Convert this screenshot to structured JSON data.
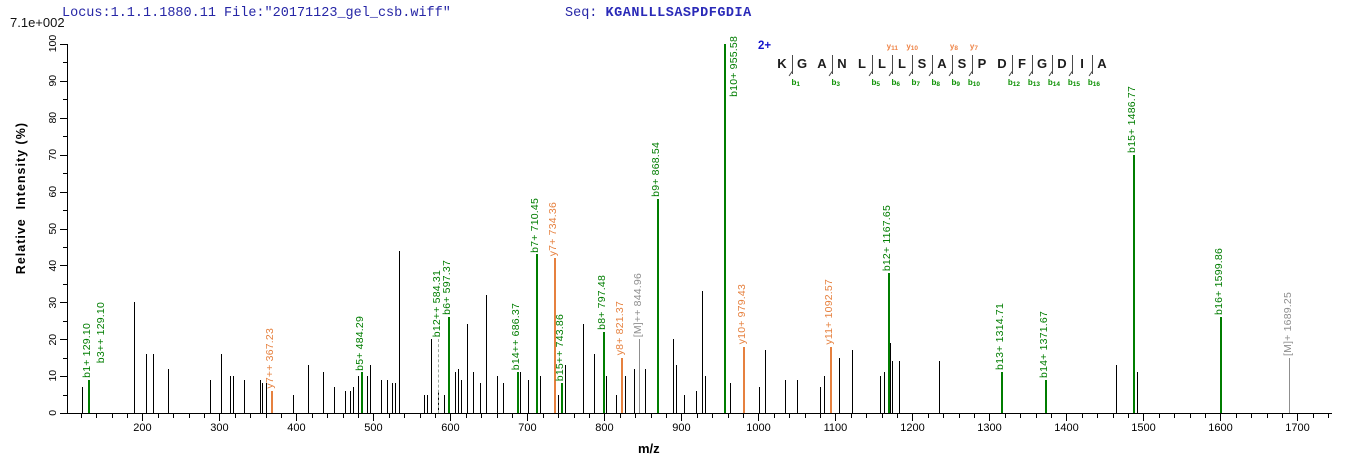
{
  "header": {
    "locus_file": "Locus:1.1.1.1880.11 File:\"20171123_gel_csb.wiff\"",
    "seq_label": "Seq: ",
    "sequence": "KGANLLLSASPDFGDIA"
  },
  "colors": {
    "b_ion": "#007d00",
    "y_ion": "#e6813f",
    "precursor_ion": "#8f8f8f",
    "unmatched_peak": "#000000",
    "header_text": "#2626a6",
    "charge_text": "#1414cc"
  },
  "chart_data": {
    "type": "bar",
    "subtype": "mass-spectrum",
    "title": "",
    "xlabel": "m/z",
    "ylabel": "Relative  Intensity (%)",
    "intensity_max_label": "7.1e+002",
    "xlim": [
      102,
      1745
    ],
    "ylim": [
      0,
      100
    ],
    "x_major_tick_step": 100,
    "x_minor_tick_step": 20,
    "x_tick_labels": [
      200,
      300,
      400,
      500,
      600,
      700,
      800,
      900,
      1000,
      1100,
      1200,
      1300,
      1400,
      1500,
      1600,
      1700
    ],
    "y_major_tick_step": 10,
    "y_minor_tick_step": 5,
    "y_tick_labels": [
      0,
      10,
      20,
      30,
      40,
      50,
      60,
      70,
      80,
      90,
      100
    ],
    "grid": false,
    "legend": false,
    "annotated_peaks": [
      {
        "label": "b1+ 129.10",
        "mz": 129.1,
        "pct": 9,
        "ion": "b"
      },
      {
        "label": "b3++ 129.10",
        "mz": 129.1,
        "pct": 9,
        "ion": "b",
        "no_line": true,
        "label_pct": 13,
        "label_dx": 7
      },
      {
        "label": "y7++ 367.23",
        "mz": 367.23,
        "pct": 6,
        "ion": "y"
      },
      {
        "label": "b5+ 484.29",
        "mz": 484.29,
        "pct": 11,
        "ion": "b"
      },
      {
        "label": "b12++ 584.31",
        "mz": 584.31,
        "pct": 6,
        "ion": "b",
        "dashed_to": 20,
        "label_pct": 20
      },
      {
        "label": "b6+ 597.37",
        "mz": 597.37,
        "pct": 26,
        "ion": "b"
      },
      {
        "label": "b14++ 686.37",
        "mz": 686.37,
        "pct": 11,
        "ion": "b"
      },
      {
        "label": "b7+ 710.45",
        "mz": 710.45,
        "pct": 43,
        "ion": "b"
      },
      {
        "label": "y7+ 734.36",
        "mz": 734.36,
        "pct": 42,
        "ion": "y"
      },
      {
        "label": "b15++ 743.86",
        "mz": 743.86,
        "pct": 8,
        "ion": "b"
      },
      {
        "label": "b8+ 797.48",
        "mz": 797.48,
        "pct": 22,
        "ion": "b"
      },
      {
        "label": "y8+ 821.37",
        "mz": 821.37,
        "pct": 15,
        "ion": "y"
      },
      {
        "label": "[M]++ 844.96",
        "mz": 844.96,
        "pct": 20,
        "ion": "M"
      },
      {
        "label": "b9+ 868.54",
        "mz": 868.54,
        "pct": 58,
        "ion": "b"
      },
      {
        "label": "b10+ 955.58",
        "mz": 955.58,
        "pct": 100,
        "ion": "b",
        "label_pct": 85,
        "label_dx": 4
      },
      {
        "label": "y10+ 979.43",
        "mz": 979.43,
        "pct": 18,
        "ion": "y"
      },
      {
        "label": "y11+ 1092.57",
        "mz": 1092.57,
        "pct": 18,
        "ion": "y"
      },
      {
        "label": "b12+ 1167.65",
        "mz": 1167.65,
        "pct": 38,
        "ion": "b"
      },
      {
        "label": "b13+ 1314.71",
        "mz": 1314.71,
        "pct": 11,
        "ion": "b"
      },
      {
        "label": "b14+ 1371.67",
        "mz": 1371.67,
        "pct": 9,
        "ion": "b"
      },
      {
        "label": "b15+ 1486.77",
        "mz": 1486.77,
        "pct": 70,
        "ion": "b"
      },
      {
        "label": "b16+ 1599.86",
        "mz": 1599.86,
        "pct": 26,
        "ion": "b"
      },
      {
        "label": "[M]+ 1689.25",
        "mz": 1689.25,
        "pct": 15,
        "ion": "M"
      }
    ],
    "unlabeled_peaks": [
      [
        122,
        7
      ],
      [
        189,
        30
      ],
      [
        204,
        16
      ],
      [
        214,
        16
      ],
      [
        233,
        12
      ],
      [
        288,
        9
      ],
      [
        302,
        16
      ],
      [
        314,
        10
      ],
      [
        318,
        10
      ],
      [
        332,
        9
      ],
      [
        352,
        9
      ],
      [
        355,
        8
      ],
      [
        361,
        8
      ],
      [
        396,
        5
      ],
      [
        415,
        13
      ],
      [
        435,
        11
      ],
      [
        449,
        7
      ],
      [
        463,
        6
      ],
      [
        469,
        6
      ],
      [
        474,
        7
      ],
      [
        480,
        10
      ],
      [
        491,
        10
      ],
      [
        495,
        13
      ],
      [
        510,
        9
      ],
      [
        517,
        9
      ],
      [
        524,
        8
      ],
      [
        528,
        8
      ],
      [
        533,
        44
      ],
      [
        565,
        5
      ],
      [
        570,
        5
      ],
      [
        575,
        20
      ],
      [
        584,
        6
      ],
      [
        591,
        5
      ],
      [
        606,
        11
      ],
      [
        610,
        12
      ],
      [
        613,
        9
      ],
      [
        622,
        24
      ],
      [
        629,
        11
      ],
      [
        638,
        8
      ],
      [
        646,
        32
      ],
      [
        660,
        10
      ],
      [
        668,
        8
      ],
      [
        690,
        11
      ],
      [
        701,
        9
      ],
      [
        716,
        10
      ],
      [
        740,
        5
      ],
      [
        749,
        13
      ],
      [
        772,
        24
      ],
      [
        786,
        16
      ],
      [
        802,
        10
      ],
      [
        815,
        5
      ],
      [
        823,
        15
      ],
      [
        827,
        10
      ],
      [
        838,
        12
      ],
      [
        853,
        12
      ],
      [
        889,
        20
      ],
      [
        893,
        13
      ],
      [
        903,
        5
      ],
      [
        919,
        6
      ],
      [
        927,
        33
      ],
      [
        931,
        10
      ],
      [
        963,
        8
      ],
      [
        1001,
        7
      ],
      [
        1008,
        17
      ],
      [
        1034,
        9
      ],
      [
        1050,
        9
      ],
      [
        1080,
        7
      ],
      [
        1085,
        10
      ],
      [
        1104,
        15
      ],
      [
        1122,
        17
      ],
      [
        1158,
        10
      ],
      [
        1163,
        11
      ],
      [
        1171,
        19
      ],
      [
        1174,
        14
      ],
      [
        1182,
        14
      ],
      [
        1235,
        14
      ],
      [
        1464,
        13
      ],
      [
        1491,
        11
      ]
    ]
  },
  "fragment_map": {
    "charge_label": "2+",
    "residues": [
      "K",
      "G",
      "A",
      "N",
      "L",
      "L",
      "L",
      "S",
      "A",
      "S",
      "P",
      "D",
      "F",
      "G",
      "D",
      "I",
      "A"
    ],
    "cuts": [
      {
        "after": 1,
        "b": "b1"
      },
      {
        "after": 3,
        "b": "b3"
      },
      {
        "after": 5,
        "b": "b5"
      },
      {
        "after": 6,
        "b": "b6",
        "y": "y11"
      },
      {
        "after": 7,
        "b": "b7",
        "y": "y10"
      },
      {
        "after": 8,
        "b": "b8"
      },
      {
        "after": 9,
        "b": "b9",
        "y": "y8"
      },
      {
        "after": 10,
        "b": "b10",
        "y": "y7"
      },
      {
        "after": 12,
        "b": "b12"
      },
      {
        "after": 13,
        "b": "b13"
      },
      {
        "after": 14,
        "b": "b14"
      },
      {
        "after": 15,
        "b": "b15"
      },
      {
        "after": 16,
        "b": "b16"
      }
    ]
  }
}
